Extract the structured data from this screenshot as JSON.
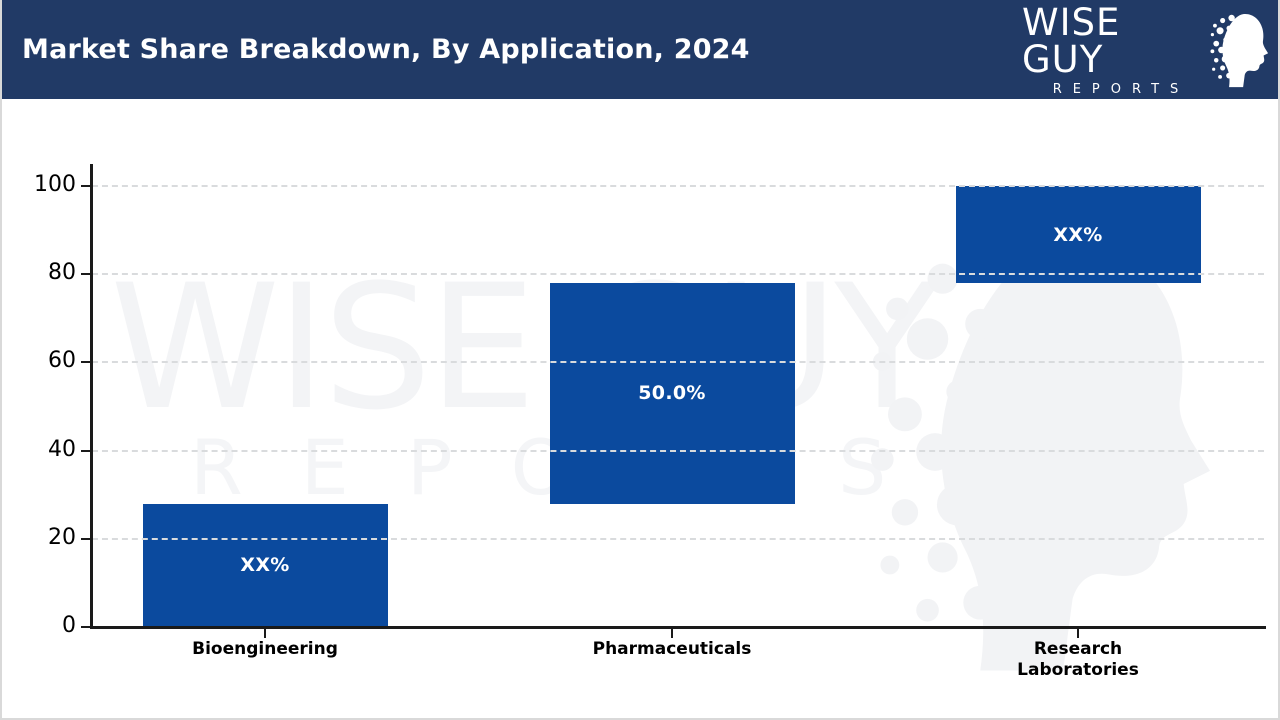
{
  "header": {
    "title": "Market Share Breakdown, By Application, 2024",
    "logo": {
      "wordmark": "WISE GUY",
      "subtext": "REPORTS"
    }
  },
  "watermark": {
    "wordmark": "WISE GUY",
    "subtext": "REPORTS"
  },
  "chart_data": {
    "type": "bar",
    "subtype": "floating-segment (waterfall-style market share)",
    "title": "Market Share Breakdown, By Application, 2024",
    "categories": [
      "Bioengineering",
      "Pharmaceuticals",
      "Research Laboratories"
    ],
    "bars": [
      {
        "category": "Bioengineering",
        "label": "XX%",
        "start": 0,
        "end": 28
      },
      {
        "category": "Pharmaceuticals",
        "label": "50.0%",
        "start": 28,
        "end": 78
      },
      {
        "category": "Research Laboratories",
        "label": "XX%",
        "start": 78,
        "end": 100
      }
    ],
    "yticks": [
      0,
      20,
      40,
      60,
      80,
      100
    ],
    "ylim": [
      0,
      105
    ],
    "xlabel": "",
    "ylabel": "",
    "grid": "horizontal dashed",
    "legend": "none",
    "colors": {
      "bar": "#0b4a9e",
      "header_background": "#213a66",
      "grid_line": "#d9dbdd",
      "axis_line": "#1a1a1a",
      "bar_label_text": "#ffffff",
      "tick_text": "#000000"
    }
  }
}
